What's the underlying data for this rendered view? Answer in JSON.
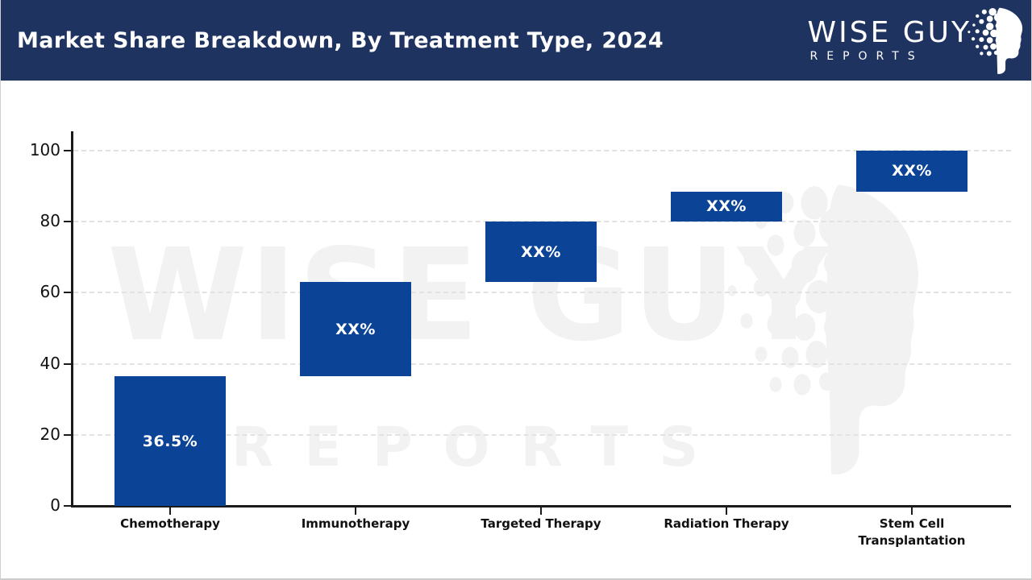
{
  "header": {
    "title": "Market Share Breakdown, By Treatment Type, 2024",
    "logo": {
      "line1": "WISE GUY",
      "line2": "REPORTS"
    }
  },
  "watermark": {
    "line1": "WISE GUY",
    "line2": "REPORTS"
  },
  "chart_data": {
    "type": "bar",
    "subtype": "waterfall",
    "title": "Market Share Breakdown, By Treatment Type, 2024",
    "categories": [
      "Chemotherapy",
      "Immunotherapy",
      "Targeted Therapy",
      "Radiation Therapy",
      "Stem Cell\nTransplantation"
    ],
    "segments": [
      {
        "category": "Chemotherapy",
        "start": 0,
        "end": 36.5,
        "label": "36.5%"
      },
      {
        "category": "Immunotherapy",
        "start": 36.5,
        "end": 63,
        "label": "XX%"
      },
      {
        "category": "Targeted Therapy",
        "start": 63,
        "end": 80,
        "label": "XX%"
      },
      {
        "category": "Radiation Therapy",
        "start": 80,
        "end": 88.5,
        "label": "XX%"
      },
      {
        "category": "Stem Cell\nTransplantation",
        "start": 88.5,
        "end": 100,
        "label": "XX%"
      }
    ],
    "ylim": [
      0,
      100
    ],
    "yticks": [
      0,
      20,
      40,
      60,
      80,
      100
    ],
    "grid": "horizontal-dashed",
    "legend": "none",
    "bar_color": "#0b4396",
    "bar_label_color": "#ffffff",
    "header_color": "#1f3361"
  }
}
